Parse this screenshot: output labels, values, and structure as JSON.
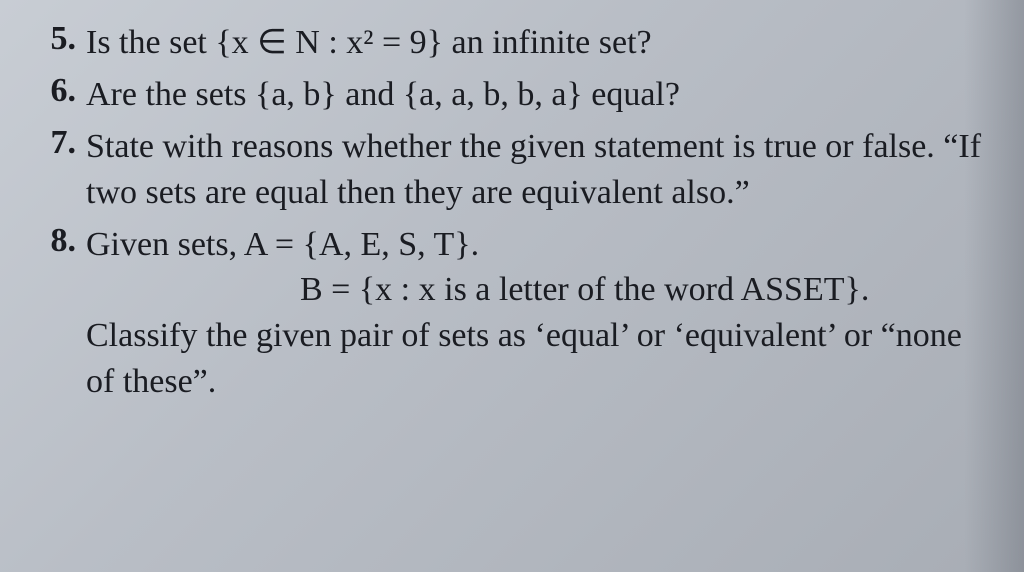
{
  "page": {
    "background_gradient": [
      "#c8cdd4",
      "#b9bec6",
      "#a8adb5"
    ],
    "text_color": "#1a1c22",
    "font_family": "Georgia, Times New Roman, serif",
    "base_fontsize_pt": 26
  },
  "questions": [
    {
      "number": "5.",
      "lines": [
        "Is the set {x ∈ N : x² = 9} an infinite set?"
      ]
    },
    {
      "number": "6.",
      "lines": [
        "Are the sets {a, b} and {a, a, b, b, a} equal?"
      ]
    },
    {
      "number": "7.",
      "lines": [
        "State with reasons whether the given statement is true or false. “If two sets are equal then they are equivalent also.”"
      ]
    },
    {
      "number": "8.",
      "lines": [
        "Given sets, A = {A, E, S, T}.",
        "B = {x : x is a letter of the word ASSET}.",
        "Classify the given pair of sets as ‘equal’ or ‘equivalent’ or “none of these”."
      ],
      "indent_line_indexes": [
        1
      ]
    }
  ]
}
